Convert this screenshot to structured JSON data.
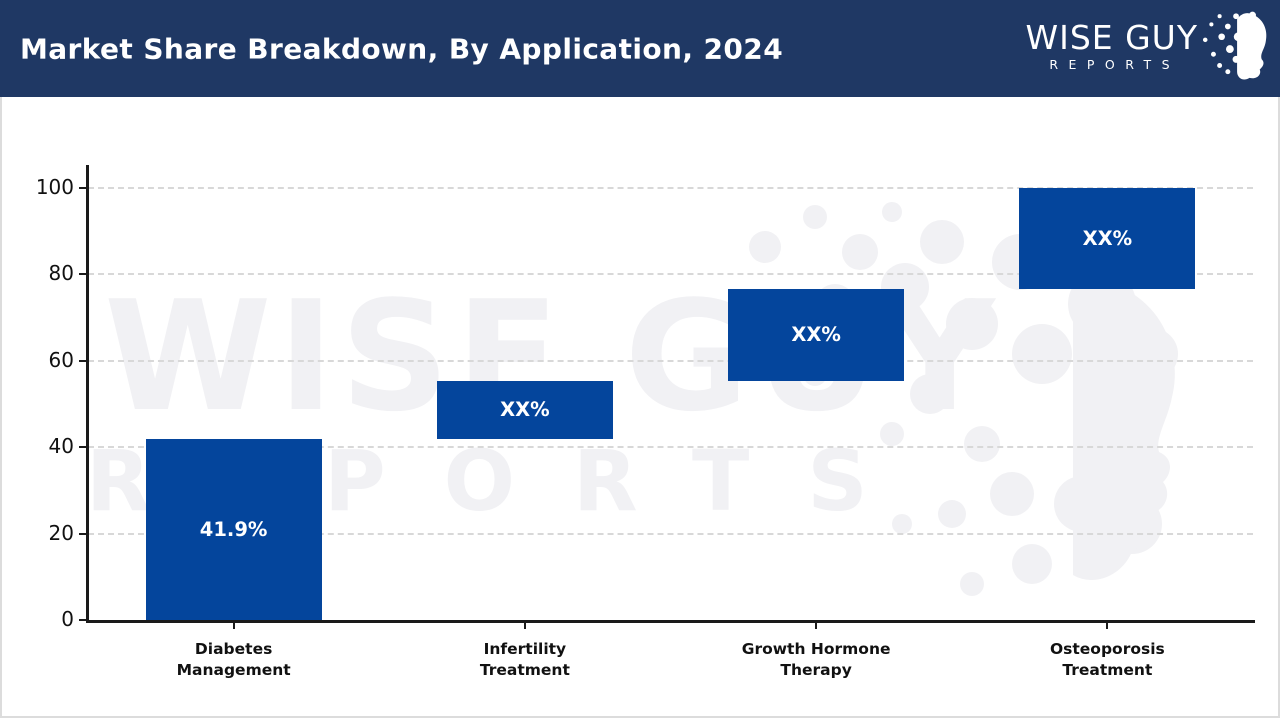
{
  "header": {
    "title": "Market Share Breakdown, By Application, 2024",
    "background_color": "#1f3864",
    "logo": {
      "name": "WISE GUY",
      "sub": "REPORTS"
    }
  },
  "watermark": {
    "line1": "WISE GUY",
    "line2": "REPORTS"
  },
  "chart_data": {
    "type": "bar",
    "subtype": "waterfall",
    "title": "Market Share Breakdown, By Application, 2024",
    "categories": [
      "Diabetes Management",
      "Infertility Treatment",
      "Growth Hormone Therapy",
      "Osteoporosis Treatment"
    ],
    "category_lines": [
      [
        "Diabetes",
        "Management"
      ],
      [
        "Infertility",
        "Treatment"
      ],
      [
        "Growth Hormone",
        "Therapy"
      ],
      [
        "Osteoporosis",
        "Treatment"
      ]
    ],
    "segments": [
      {
        "category": "Diabetes Management",
        "start": 0,
        "end": 41.9,
        "label": "41.9%"
      },
      {
        "category": "Infertility Treatment",
        "start": 41.9,
        "end": 55.4,
        "label": "XX%"
      },
      {
        "category": "Growth Hormone Therapy",
        "start": 55.4,
        "end": 76.6,
        "label": "XX%"
      },
      {
        "category": "Osteoporosis Treatment",
        "start": 76.6,
        "end": 100,
        "label": "XX%"
      }
    ],
    "yticks": [
      0,
      20,
      40,
      60,
      80,
      100
    ],
    "ylim": [
      0,
      105
    ],
    "xlabel": "",
    "ylabel": "",
    "grid": true,
    "grid_style": "dashed",
    "legend": false,
    "colors": {
      "bar": "#04459c",
      "bar_label": "#ffffff",
      "axis": "#1a1a1a",
      "grid": "#d8d8d8",
      "watermark": "#f1f1f4"
    }
  }
}
